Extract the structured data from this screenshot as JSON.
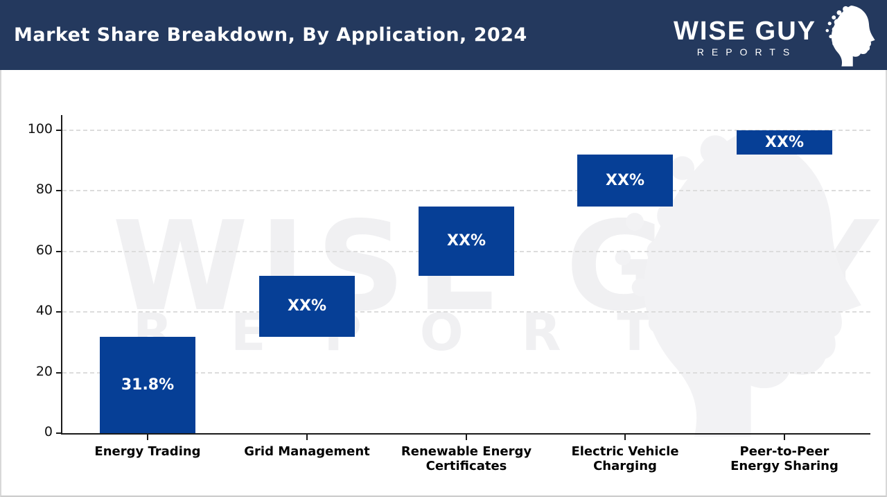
{
  "header": {
    "title": "Market Share Breakdown, By Application, 2024",
    "logo": {
      "line1": "WISE GUY",
      "line2": "REPORTS"
    }
  },
  "watermark": {
    "line1": "WISE GUY",
    "line2": "REPORTS"
  },
  "colors": {
    "header_bg": "#24395e",
    "bar": "#063f96",
    "grid": "#dcdcdc",
    "axis": "#1a1a1a",
    "bar_label_text": "#ffffff",
    "watermark": "#f0f0f2"
  },
  "chart_data": {
    "type": "bar",
    "variant": "waterfall-stacked-segments",
    "title": "Market Share Breakdown, By Application, 2024",
    "xlabel": "",
    "ylabel": "",
    "ylim": [
      0,
      105
    ],
    "yticks": [
      0,
      20,
      40,
      60,
      80,
      100
    ],
    "grid": "horizontal-dashed",
    "legend": "none",
    "categories": [
      "Energy Trading",
      "Grid Management",
      "Renewable Energy Certificates",
      "Electric Vehicle Charging",
      "Peer-to-Peer Energy Sharing"
    ],
    "category_display_lines": [
      [
        "Energy Trading"
      ],
      [
        "Grid Management"
      ],
      [
        "Renewable Energy",
        "Certificates"
      ],
      [
        "Electric Vehicle",
        "Charging"
      ],
      [
        "Peer-to-Peer",
        "Energy Sharing"
      ]
    ],
    "segments": [
      {
        "category": "Energy Trading",
        "start": 0,
        "end": 31.8,
        "value": 31.8,
        "label": "31.8%"
      },
      {
        "category": "Grid Management",
        "start": 31.8,
        "end": 52.0,
        "value": 20.2,
        "label": "XX%"
      },
      {
        "category": "Renewable Energy Certificates",
        "start": 52.0,
        "end": 74.8,
        "value": 22.8,
        "label": "XX%"
      },
      {
        "category": "Electric Vehicle Charging",
        "start": 74.8,
        "end": 92.0,
        "value": 17.2,
        "label": "XX%"
      },
      {
        "category": "Peer-to-Peer Energy Sharing",
        "start": 92.0,
        "end": 100.0,
        "value": 8.0,
        "label": "XX%"
      }
    ]
  }
}
